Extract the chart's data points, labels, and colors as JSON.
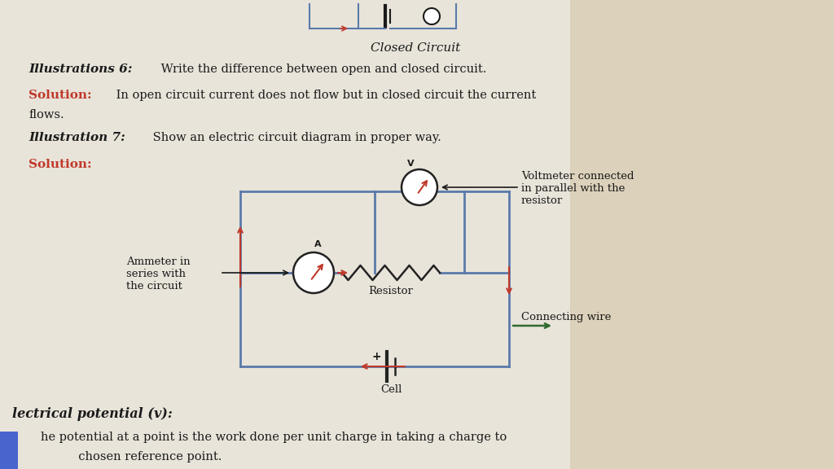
{
  "bg_left_color": "#c8c0aa",
  "bg_right_color": "#c8b48a",
  "paper_color": "#e8e4da",
  "circuit_color": "#5a7aaa",
  "arrow_color": "#c0392b",
  "green_arrow_color": "#2e6b2e",
  "text_color": "#1a1a1a",
  "sol_color": "#c0392b",
  "illus_color": "#1a1a1a",
  "title_text": "Closed Circuit",
  "illus6_bold": "Illustrations 6:",
  "illus6_rest": " Write the difference between open and closed circuit.",
  "sol1_bold": "Solution:",
  "sol1_rest": " In open circuit current does not flow but in closed circuit the current",
  "sol1_rest2": "flows.",
  "illus7_bold": "Illustration 7:",
  "illus7_rest": " Show an electric circuit diagram in proper way.",
  "sol2_bold": "Solution:",
  "lbl_ammeter": "Ammeter in\nseries with\nthe circuit",
  "lbl_resistor": "Resistor",
  "lbl_voltmeter": "Voltmeter connected\nin parallel with the\nresistor",
  "lbl_connecting": "Connecting wire",
  "lbl_cell": "Cell",
  "bot_bold": "lectrical potential (v):",
  "bot_line1": "he potential at a point is the work done per unit charge in taking a charge to",
  "bot_line2": "          chosen reference point."
}
